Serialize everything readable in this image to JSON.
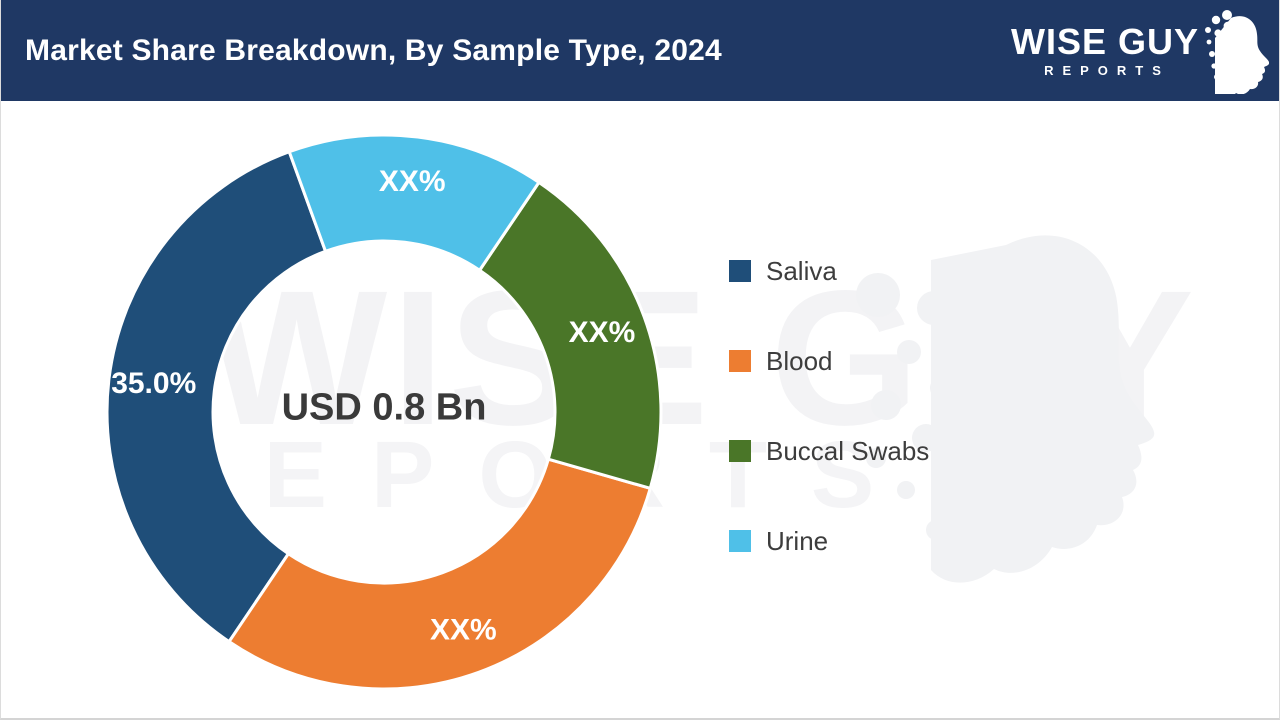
{
  "header": {
    "title": "Market Share Breakdown, By Sample Type, 2024",
    "bg_color": "#1F3864",
    "logo": {
      "line1": "WISE GUY",
      "line2": "REPORTS"
    }
  },
  "watermark": {
    "line1": "WISE GUY",
    "line2": "REPORTS"
  },
  "chart_data": {
    "type": "pie",
    "variant": "donut",
    "title": "Market Share Breakdown, By Sample Type, 2024",
    "center_label": "USD 0.8 Bn",
    "start_angle_deg": 110,
    "direction": "counterclockwise",
    "legend_position": "right",
    "grid": false,
    "segments": [
      {
        "name": "Saliva",
        "value_pct": 35.0,
        "displayed_label": "35.0%",
        "color": "#1F4E79"
      },
      {
        "name": "Blood",
        "value_pct": 30.0,
        "displayed_label": "XX%",
        "color": "#ED7D31"
      },
      {
        "name": "Buccal Swabs",
        "value_pct": 20.0,
        "displayed_label": "XX%",
        "color": "#4A7628"
      },
      {
        "name": "Urine",
        "value_pct": 15.0,
        "displayed_label": "XX%",
        "color": "#4FC0E8"
      }
    ]
  }
}
